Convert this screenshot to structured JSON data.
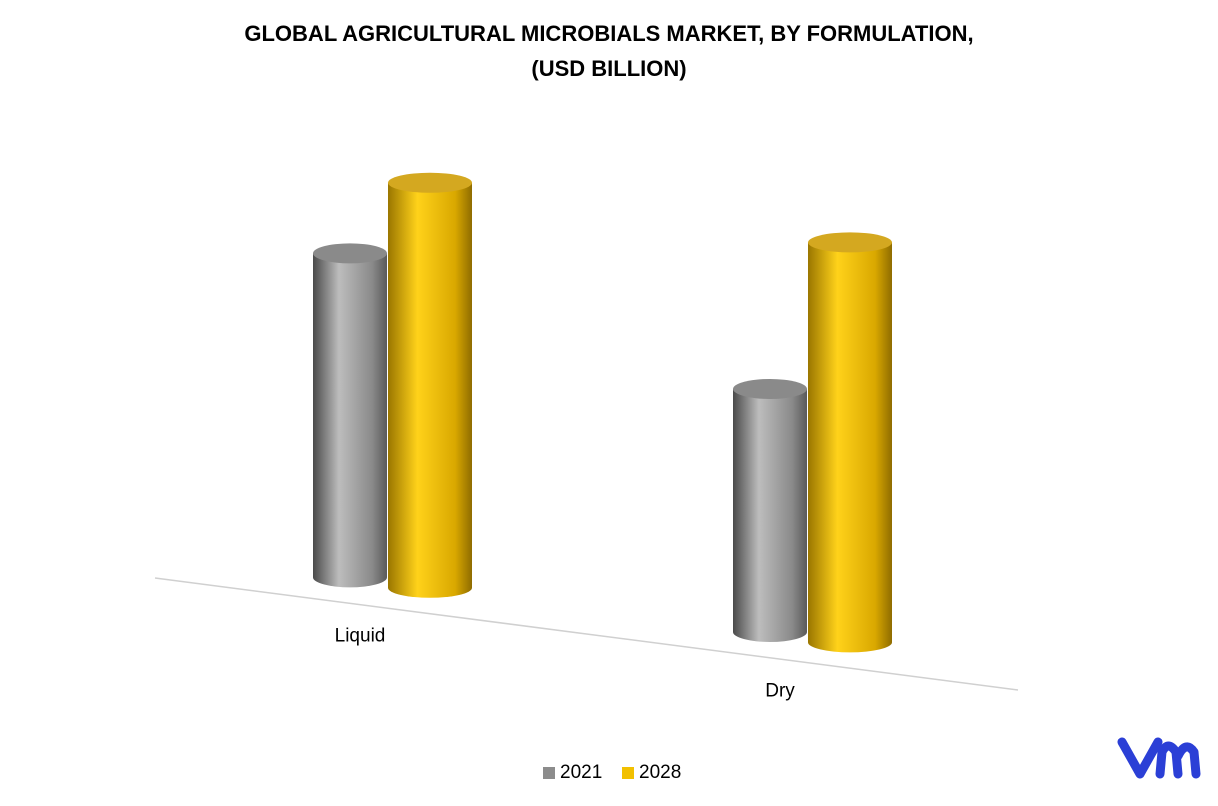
{
  "chart_data": {
    "type": "bar3d",
    "title": [
      "GLOBAL AGRICULTURAL MICROBIALS MARKET, BY FORMULATION,",
      "(USD BILLION)"
    ],
    "categories": [
      "Liquid",
      "Dry"
    ],
    "series": [
      {
        "name": "2021",
        "color": "#8c8c8c",
        "values": [
          3.2,
          2.4
        ]
      },
      {
        "name": "2028",
        "color": "#f2c000",
        "values": [
          4.0,
          3.95
        ]
      }
    ],
    "legend": "bottom"
  }
}
